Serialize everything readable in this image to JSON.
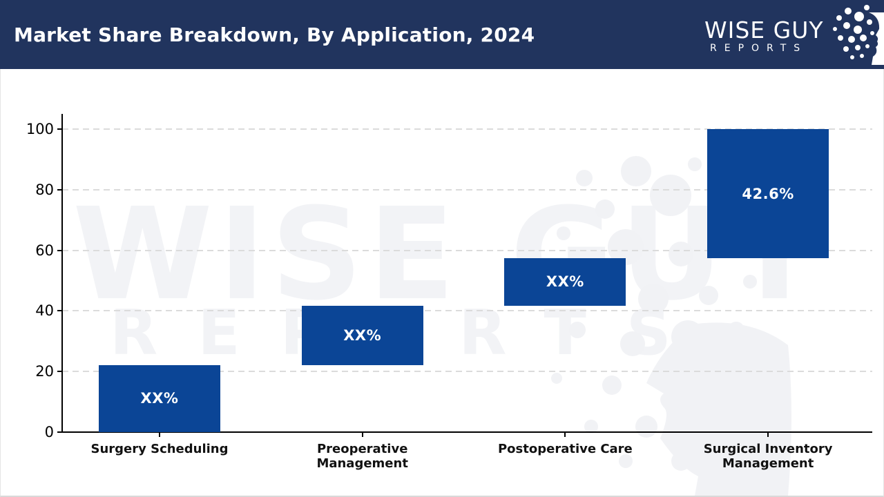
{
  "header": {
    "title": "Market Share Breakdown, By Application, 2024",
    "logo_line1": "WISE GUY",
    "logo_line2": "REPORTS"
  },
  "watermark": {
    "line1": "WISE GUY",
    "line2": "REPORTS"
  },
  "icons": {
    "logo_face": "dotted-head-profile-icon",
    "watermark_face": "dotted-head-profile-icon"
  },
  "colors": {
    "header_bg": "#21345E",
    "bar": "#0B4596",
    "bar_label": "#FFFFFF",
    "grid": "#DBDBDB",
    "axis": "#000000",
    "watermark": "#F2F3F6"
  },
  "chart_data": {
    "type": "bar",
    "subtype": "waterfall",
    "title": "Market Share Breakdown, By Application, 2024",
    "categories": [
      "Surgery Scheduling",
      "Preoperative Management",
      "Postoperative Care",
      "Surgical Inventory Management"
    ],
    "categories_wrapped": [
      [
        "Surgery Scheduling"
      ],
      [
        "Preoperative",
        "Management"
      ],
      [
        "Postoperative Care"
      ],
      [
        "Surgical Inventory",
        "Management"
      ]
    ],
    "segments": [
      {
        "category": "Surgery Scheduling",
        "label": "XX%",
        "start": 0,
        "end": 22.1
      },
      {
        "category": "Preoperative Management",
        "label": "XX%",
        "start": 22.1,
        "end": 41.7
      },
      {
        "category": "Postoperative Care",
        "label": "XX%",
        "start": 41.7,
        "end": 57.4
      },
      {
        "category": "Surgical Inventory Management",
        "label": "42.6%",
        "start": 57.4,
        "end": 100
      }
    ],
    "yticks": [
      0,
      20,
      40,
      60,
      80,
      100
    ],
    "ylim": [
      0,
      105
    ],
    "grid": true,
    "grid_style": "dashed-horizontal",
    "legend": false,
    "xlabel": "",
    "ylabel": ""
  }
}
